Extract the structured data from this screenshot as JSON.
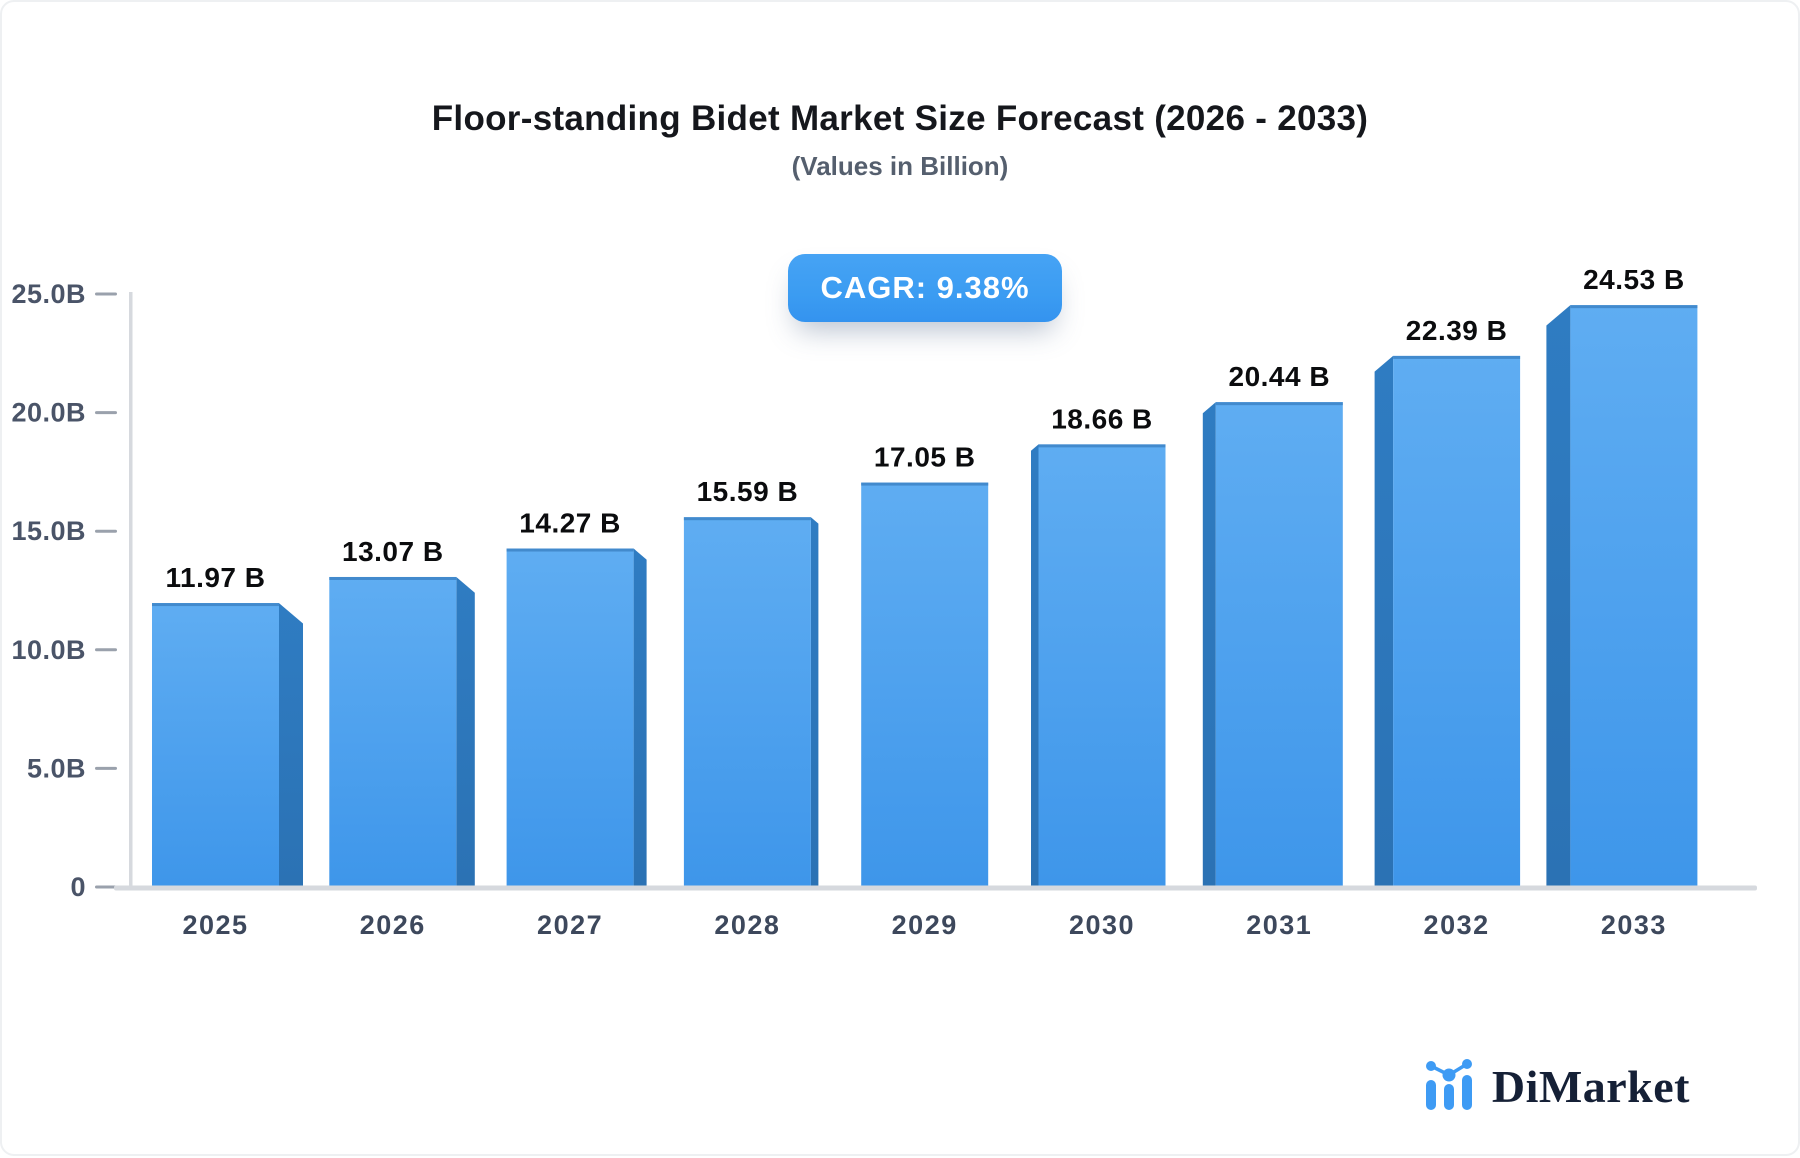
{
  "header": {
    "title": "Floor-standing Bidet Market Size Forecast (2026 - 2033)",
    "subtitle": "(Values in Billion)"
  },
  "badge": {
    "label": "CAGR: 9.38%",
    "background_color": "#3b9cf2",
    "text_color": "#ffffff"
  },
  "chart_data": {
    "type": "bar",
    "title": "Floor-standing Bidet Market Size Forecast (2026 - 2033)",
    "subtitle": "(Values in Billion)",
    "cagr": "9.38%",
    "categories": [
      "2025",
      "2026",
      "2027",
      "2028",
      "2029",
      "2030",
      "2031",
      "2032",
      "2033"
    ],
    "values": [
      11.97,
      13.07,
      14.27,
      15.59,
      17.05,
      18.66,
      20.44,
      22.39,
      24.53
    ],
    "value_labels": [
      "11.97 B",
      "13.07 B",
      "14.27 B",
      "15.59 B",
      "17.05 B",
      "18.66 B",
      "20.44 B",
      "22.39 B",
      "24.53 B"
    ],
    "unit": "Billion",
    "xlabel": "",
    "ylabel": "",
    "ylim": [
      0,
      25
    ],
    "yticks": [
      0,
      5,
      10,
      15,
      20,
      25
    ],
    "ytick_labels": [
      "0",
      "5.0B",
      "10.0B",
      "15.0B",
      "20.0B",
      "25.0B"
    ],
    "grid": false,
    "legend": false,
    "style_3d": true,
    "colors": {
      "bar_face_top": "#5fadf2",
      "bar_face_bottom": "#3e96ea",
      "bar_top_edge": "#3f86c9",
      "bar_side_top": "#2f7cc2",
      "bar_side_bottom": "#2b72b4",
      "axis_line": "#d6d9de",
      "tick_dash": "#9aa1ac",
      "tick_text": "#4a5468",
      "category_text": "#3d485c",
      "value_text": "#0b0c0e"
    }
  },
  "footer": {
    "brand": "DiMarket",
    "brand_color": "#152036",
    "brand_icon": "mini-bar-line-chart-icon",
    "brand_icon_color": "#3e9bf4"
  }
}
